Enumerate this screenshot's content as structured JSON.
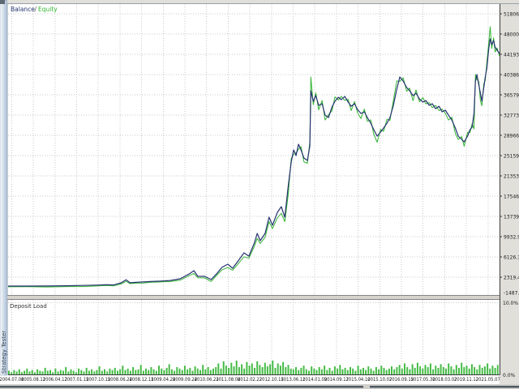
{
  "window": {
    "panel_caption": "Strategy Tester",
    "deposit_caption": "Deposit Load",
    "legend": {
      "balance": "Balance",
      "separator": "/",
      "equity": "Equity"
    }
  },
  "colors": {
    "balance": "#26336f",
    "equity": "#33b433",
    "deposit_bars": "#46bb46",
    "grid": "#c9c9c9",
    "axis": "#3a3a3a",
    "plot_bg": "#ffffff",
    "chrome_bg": "#e1dfda"
  },
  "chart_data": {
    "type": "line",
    "title": "Balance / Equity tester graph with Deposit Load subchart",
    "grid": "dotted",
    "legend": [
      "Balance",
      "Equity"
    ],
    "legend_position": "top-left",
    "y_axis": {
      "top": 51806,
      "step": 3806.66,
      "labels": [
        "51806",
        "48000",
        "44193",
        "40386",
        "36579",
        "32773",
        "28966",
        "25159",
        "21353",
        "17546",
        "13739",
        "9932.9",
        "6126.1",
        "2319.4",
        "-1487."
      ]
    },
    "x_axis": {
      "labels": [
        "2004.07.06",
        "2005.08.11",
        "2006.04.17",
        "2007.01.15",
        "2007.10.15",
        "2008.06.24",
        "2008.12.15",
        "2009.04.28",
        "2009.09.24",
        "2010.06.23",
        "2011.08.08",
        "2012.02.22",
        "2012.10.15",
        "2013.06.11",
        "2014.01.09",
        "2014.09.17",
        "2015.04.10",
        "2015.10.02",
        "2016.09.15",
        "2017.05.30",
        "2018.03.02",
        "2019.11.12",
        "2021.05.07"
      ]
    },
    "series": [
      {
        "name": "Balance",
        "color": "#26336f"
      },
      {
        "name": "Equity",
        "color": "#33b433"
      }
    ],
    "points_format": "[x_fraction, balance_value, equity_minus_balance]",
    "points": [
      [
        0.0,
        650,
        -150
      ],
      [
        0.04,
        640,
        -120
      ],
      [
        0.08,
        660,
        -180
      ],
      [
        0.12,
        700,
        -140
      ],
      [
        0.15,
        760,
        -200
      ],
      [
        0.18,
        820,
        -160
      ],
      [
        0.2,
        900,
        -130
      ],
      [
        0.215,
        860,
        -170
      ],
      [
        0.23,
        1260,
        -220
      ],
      [
        0.24,
        1830,
        -280
      ],
      [
        0.248,
        1270,
        -170
      ],
      [
        0.26,
        1350,
        -150
      ],
      [
        0.275,
        1420,
        -190
      ],
      [
        0.29,
        1500,
        -160
      ],
      [
        0.31,
        1570,
        -150
      ],
      [
        0.33,
        1700,
        -210
      ],
      [
        0.35,
        2010,
        -260
      ],
      [
        0.368,
        2900,
        -320
      ],
      [
        0.378,
        3540,
        -520
      ],
      [
        0.386,
        2480,
        -260
      ],
      [
        0.4,
        2470,
        -310
      ],
      [
        0.413,
        1870,
        -360
      ],
      [
        0.424,
        2910,
        -290
      ],
      [
        0.435,
        4140,
        -460
      ],
      [
        0.447,
        4750,
        -620
      ],
      [
        0.457,
        3990,
        -360
      ],
      [
        0.468,
        5360,
        -520
      ],
      [
        0.48,
        6880,
        -720
      ],
      [
        0.49,
        6270,
        -410
      ],
      [
        0.501,
        8710,
        -620
      ],
      [
        0.507,
        10540,
        -930
      ],
      [
        0.513,
        9170,
        -520
      ],
      [
        0.523,
        10540,
        -720
      ],
      [
        0.531,
        13580,
        -830
      ],
      [
        0.538,
        12060,
        -620
      ],
      [
        0.548,
        14500,
        -1040
      ],
      [
        0.556,
        15560,
        -1240
      ],
      [
        0.563,
        13580,
        -830
      ],
      [
        0.57,
        19370,
        -1550
      ],
      [
        0.576,
        23940,
        620
      ],
      [
        0.581,
        26220,
        -830
      ],
      [
        0.586,
        25160,
        520
      ],
      [
        0.591,
        27290,
        -930
      ],
      [
        0.596,
        26220,
        620
      ],
      [
        0.602,
        24700,
        -720
      ],
      [
        0.609,
        24240,
        -520
      ],
      [
        0.614,
        26980,
        830
      ],
      [
        0.616,
        37340,
        2590
      ],
      [
        0.621,
        35360,
        -620
      ],
      [
        0.626,
        36420,
        520
      ],
      [
        0.632,
        34600,
        -830
      ],
      [
        0.639,
        34900,
        620
      ],
      [
        0.645,
        32770,
        -930
      ],
      [
        0.652,
        32310,
        520
      ],
      [
        0.659,
        34290,
        -720
      ],
      [
        0.665,
        35360,
        830
      ],
      [
        0.672,
        36120,
        -520
      ],
      [
        0.678,
        35660,
        620
      ],
      [
        0.685,
        36270,
        -720
      ],
      [
        0.692,
        35210,
        520
      ],
      [
        0.698,
        34440,
        -830
      ],
      [
        0.705,
        34900,
        410
      ],
      [
        0.711,
        33830,
        -620
      ],
      [
        0.718,
        33070,
        -930
      ],
      [
        0.725,
        33380,
        520
      ],
      [
        0.731,
        32310,
        -720
      ],
      [
        0.738,
        31250,
        620
      ],
      [
        0.744,
        30030,
        -830
      ],
      [
        0.751,
        28810,
        -1140
      ],
      [
        0.758,
        29570,
        520
      ],
      [
        0.764,
        30330,
        -620
      ],
      [
        0.771,
        31250,
        720
      ],
      [
        0.777,
        32310,
        -520
      ],
      [
        0.784,
        34600,
        930
      ],
      [
        0.791,
        37640,
        1550
      ],
      [
        0.797,
        39930,
        -830
      ],
      [
        0.804,
        39160,
        620
      ],
      [
        0.811,
        37950,
        -720
      ],
      [
        0.817,
        37340,
        520
      ],
      [
        0.824,
        36420,
        -930
      ],
      [
        0.83,
        36880,
        620
      ],
      [
        0.837,
        35810,
        -520
      ],
      [
        0.844,
        35210,
        830
      ],
      [
        0.85,
        35510,
        -620
      ],
      [
        0.857,
        34600,
        520
      ],
      [
        0.863,
        34900,
        -720
      ],
      [
        0.87,
        33980,
        620
      ],
      [
        0.877,
        34440,
        -830
      ],
      [
        0.883,
        33380,
        520
      ],
      [
        0.89,
        33680,
        -620
      ],
      [
        0.896,
        32770,
        -930
      ],
      [
        0.903,
        31850,
        520
      ],
      [
        0.91,
        30330,
        -1040
      ],
      [
        0.916,
        28810,
        -620
      ],
      [
        0.923,
        28200,
        520
      ],
      [
        0.928,
        27740,
        -830
      ],
      [
        0.935,
        28810,
        720
      ],
      [
        0.94,
        30030,
        -520
      ],
      [
        0.944,
        30490,
        620
      ],
      [
        0.948,
        33070,
        -2900
      ],
      [
        0.951,
        39160,
        1240
      ],
      [
        0.954,
        40380,
        -930
      ],
      [
        0.958,
        38400,
        620
      ],
      [
        0.961,
        36880,
        -1450
      ],
      [
        0.964,
        35360,
        -830
      ],
      [
        0.968,
        37950,
        720
      ],
      [
        0.971,
        39930,
        -620
      ],
      [
        0.974,
        41450,
        930
      ],
      [
        0.978,
        45250,
        1140
      ],
      [
        0.981,
        47080,
        2290
      ],
      [
        0.984,
        46010,
        -720
      ],
      [
        0.988,
        46770,
        520
      ],
      [
        0.991,
        45550,
        -930
      ],
      [
        0.995,
        44950,
        410
      ],
      [
        1.0,
        44340,
        -520
      ]
    ],
    "deposit_load": {
      "label": "Deposit Load",
      "axis_max": "10.0%",
      "axis_min": "0.0%",
      "unit": "%",
      "values": [
        0.5,
        0.3,
        0.6,
        0.4,
        0.7,
        0.3,
        0.5,
        0.8,
        0.4,
        0.6,
        0.3,
        0.7,
        0.5,
        0.4,
        0.9,
        0.5,
        0.6,
        0.3,
        0.8,
        0.4,
        0.6,
        0.5,
        1.0,
        0.4,
        0.7,
        0.5,
        0.3,
        0.8,
        0.6,
        0.4,
        0.9,
        0.5,
        0.7,
        0.4,
        0.6,
        1.1,
        0.5,
        0.7,
        0.4,
        0.8,
        0.6,
        0.9,
        0.5,
        0.7,
        1.2,
        0.6,
        0.8,
        0.5,
        1.0,
        0.6,
        0.7,
        1.3,
        0.5,
        0.8,
        0.6,
        1.0,
        0.7,
        0.5,
        1.2,
        0.8,
        0.6,
        0.9,
        1.4,
        0.7,
        0.5,
        1.0,
        0.8,
        0.6,
        1.2,
        0.7,
        0.9,
        0.5,
        1.1,
        0.8,
        0.6,
        1.3,
        0.7,
        1.0,
        0.6,
        0.8,
        1.0,
        1.5,
        0.8,
        1.8,
        1.2,
        0.9,
        1.6,
        1.1,
        1.9,
        1.0,
        1.4,
        0.8,
        1.7,
        1.2,
        1.5,
        0.9,
        1.8,
        1.3,
        1.0,
        1.6,
        1.1,
        1.4,
        1.9,
        0.9,
        1.5,
        1.2,
        1.7,
        1.0,
        1.3,
        0.8,
        0.7,
        1.0,
        0.6,
        0.9,
        1.2,
        0.7,
        0.5,
        1.1,
        0.8,
        0.6,
        1.0,
        0.7,
        1.2,
        0.6,
        0.9,
        0.5,
        1.1,
        0.8,
        1.3,
        0.7,
        0.9,
        0.6,
        1.0,
        0.8,
        0.5,
        1.2,
        0.7,
        0.9,
        0.6,
        1.1,
        0.8,
        0.5,
        1.0,
        0.7,
        1.2,
        0.9,
        0.6,
        0.8,
        1.1,
        0.7,
        1.0,
        1.3,
        0.8,
        1.5,
        1.0,
        0.7,
        1.4,
        0.9,
        1.6,
        1.1,
        0.8,
        1.3,
        1.0,
        1.5,
        0.7,
        1.2,
        0.9,
        1.4,
        1.0,
        0.8,
        1.5,
        1.1,
        0.7,
        1.3,
        0.9,
        1.6,
        1.0,
        1.2,
        0.8,
        1.4,
        1.0,
        0.7,
        1.3,
        0.9,
        1.1,
        1.5,
        0.8,
        1.2,
        0.9,
        1.3
      ]
    }
  }
}
